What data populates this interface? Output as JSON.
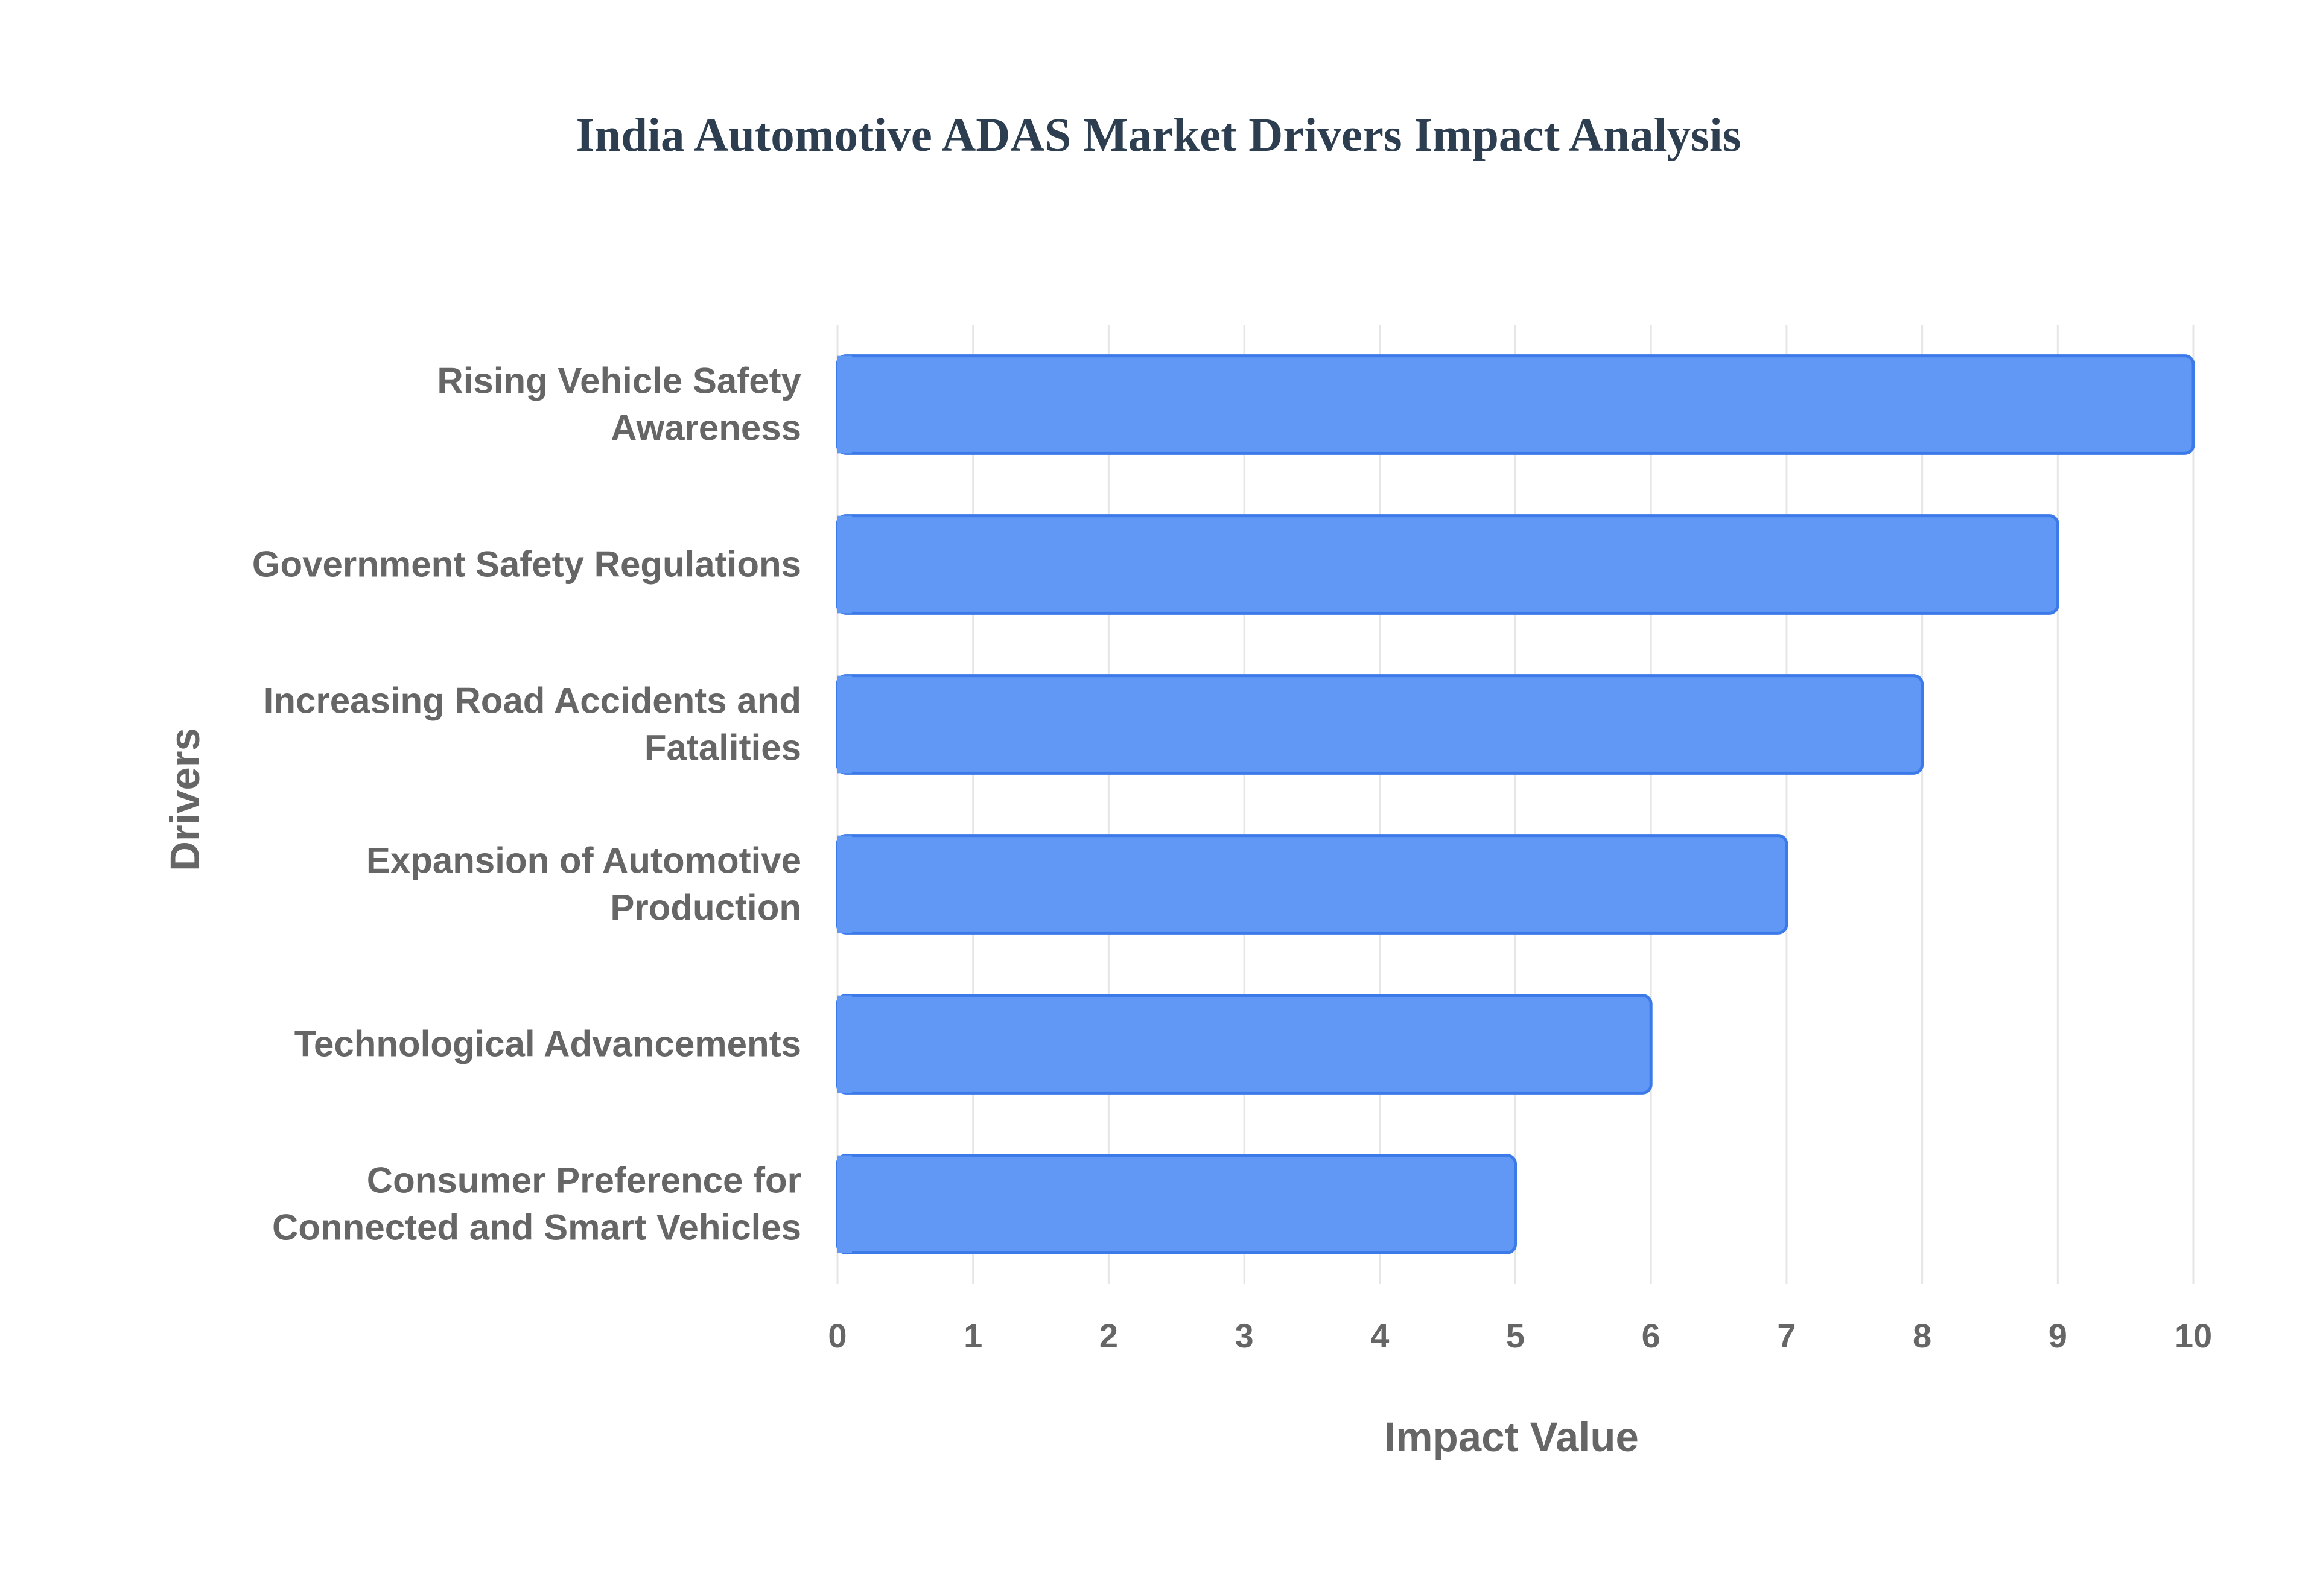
{
  "chart_data": {
    "type": "bar",
    "orientation": "horizontal",
    "title": "India Automotive ADAS Market Drivers Impact Analysis",
    "xlabel": "Impact Value",
    "ylabel": "Drivers",
    "xlim": [
      0,
      10
    ],
    "xticks": [
      "0",
      "1",
      "2",
      "3",
      "4",
      "5",
      "6",
      "7",
      "8",
      "9",
      "10"
    ],
    "categories": [
      [
        "Rising Vehicle Safety",
        "Awareness"
      ],
      [
        "Government Safety Regulations"
      ],
      [
        "Increasing Road Accidents and",
        "Fatalities"
      ],
      [
        "Expansion of Automotive",
        "Production"
      ],
      [
        "Technological Advancements"
      ],
      [
        "Consumer Preference for",
        "Connected and Smart Vehicles"
      ]
    ],
    "values": [
      10,
      9,
      8,
      7,
      6,
      5
    ],
    "grid": true,
    "legend": "none",
    "colors": {
      "bar_fill": "#6298f5",
      "bar_stroke": "#3b7ae8",
      "title": "#2c3e50",
      "text": "#666666",
      "grid": "#e6e6e6"
    }
  }
}
